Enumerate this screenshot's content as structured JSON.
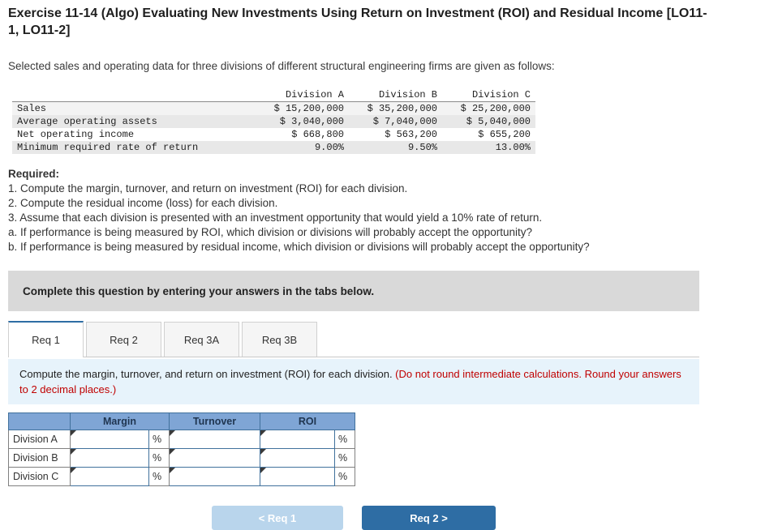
{
  "title": "Exercise 11-14 (Algo) Evaluating New Investments Using Return on Investment (ROI) and Residual Income [LO11-1, LO11-2]",
  "intro": "Selected sales and operating data for three divisions of different structural engineering firms are given as follows:",
  "data_table": {
    "columns": [
      "Division A",
      "Division B",
      "Division C"
    ],
    "rows": [
      {
        "label": "Sales",
        "values": [
          "$ 15,200,000",
          "$ 35,200,000",
          "$ 25,200,000"
        ]
      },
      {
        "label": "Average operating assets",
        "values": [
          "$ 3,040,000",
          "$ 7,040,000",
          "$ 5,040,000"
        ]
      },
      {
        "label": "Net operating income",
        "values": [
          "$ 668,800",
          "$ 563,200",
          "$ 655,200"
        ]
      },
      {
        "label": "Minimum required rate of return",
        "values": [
          "9.00%",
          "9.50%",
          "13.00%"
        ]
      }
    ]
  },
  "required": {
    "heading": "Required:",
    "items": [
      "1. Compute the margin, turnover, and return on investment (ROI) for each division.",
      "2. Compute the residual income (loss) for each division.",
      "3. Assume that each division is presented with an investment opportunity that would yield a 10% rate of return.",
      "a. If performance is being measured by ROI, which division or divisions will probably accept the opportunity?",
      "b. If performance is being measured by residual income, which division or divisions will probably accept the opportunity?"
    ]
  },
  "banner": "Complete this question by entering your answers in the tabs below.",
  "tabs": [
    {
      "label": "Req 1",
      "active": true
    },
    {
      "label": "Req 2",
      "active": false
    },
    {
      "label": "Req 3A",
      "active": false
    },
    {
      "label": "Req 3B",
      "active": false
    }
  ],
  "instruction": {
    "normal": "Compute the margin, turnover, and return on investment (ROI) for each division. ",
    "highlight": "(Do not round intermediate calculations. Round your answers to 2 decimal places.)"
  },
  "answer_table": {
    "headers": [
      "Margin",
      "Turnover",
      "ROI"
    ],
    "percent": "%",
    "rows": [
      {
        "label": "Division A",
        "margin": "",
        "turnover": "",
        "roi": ""
      },
      {
        "label": "Division B",
        "margin": "",
        "turnover": "",
        "roi": ""
      },
      {
        "label": "Division C",
        "margin": "",
        "turnover": "",
        "roi": ""
      }
    ]
  },
  "buttons": {
    "prev": "<  Req 1",
    "next": "Req 2  >"
  },
  "colors": {
    "banner_bg": "#d9d9d9",
    "tab_active_accent": "#2e6da4",
    "instruction_bg": "#e7f3fb",
    "instruction_red": "#c00000",
    "answer_header_bg": "#7fa5d5",
    "answer_cell_border": "#41719c",
    "prev_button_bg": "#b9d5ec",
    "next_button_bg": "#2e6da4"
  }
}
